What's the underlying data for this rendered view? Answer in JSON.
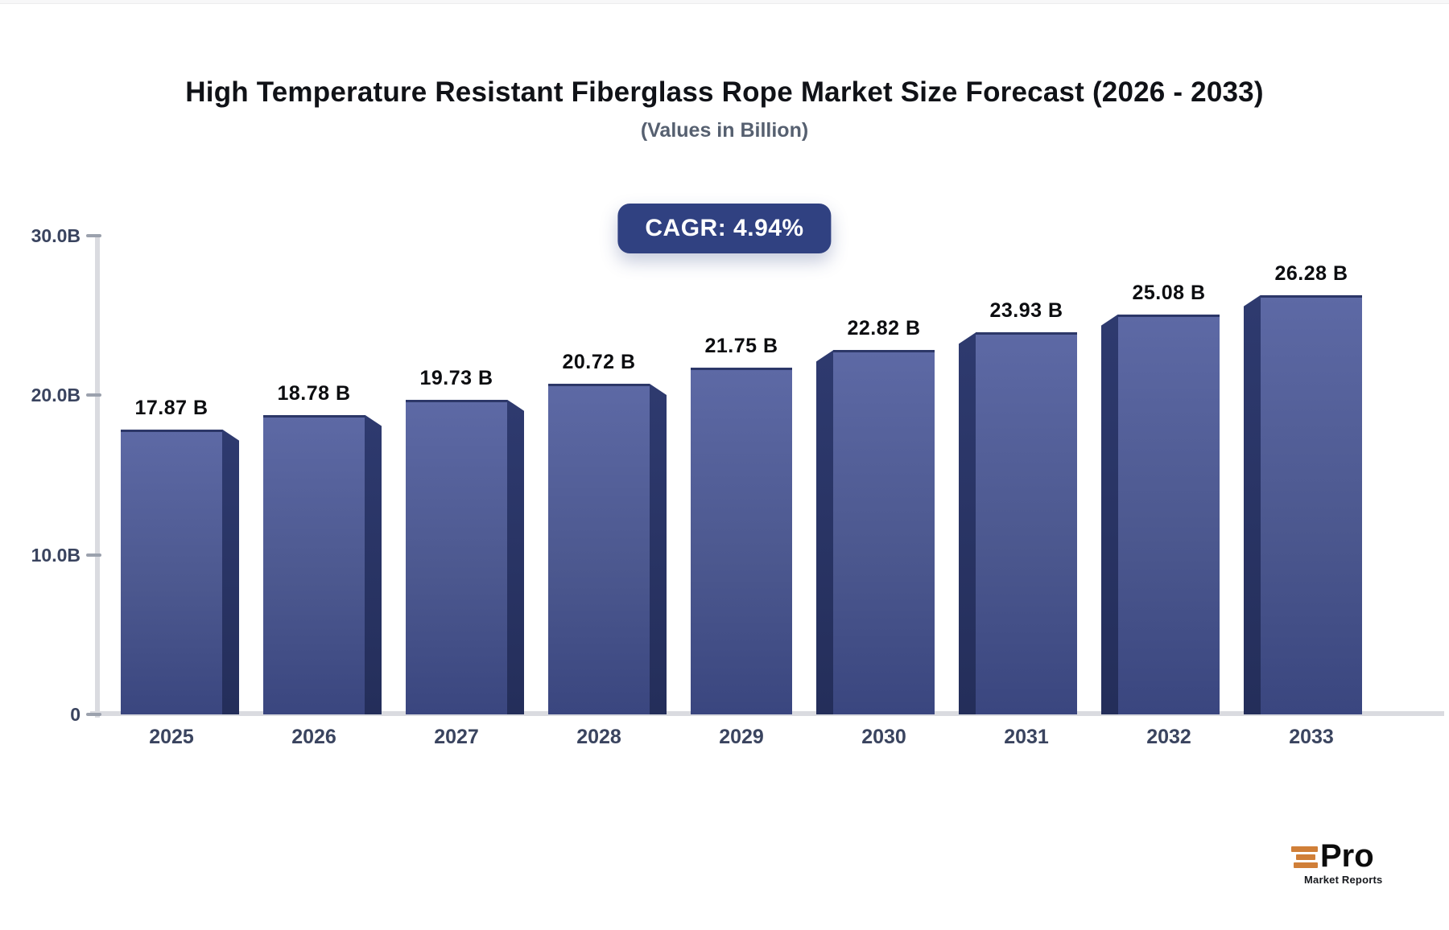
{
  "title": "High Temperature Resistant Fiberglass Rope Market Size Forecast (2026 - 2033)",
  "subtitle": "(Values in Billion)",
  "cagr_badge_label": "CAGR: 4.94%",
  "logo": {
    "name": "Pro",
    "tagline": "Market Reports"
  },
  "colors": {
    "bar_face_top": "#5d69a5",
    "bar_face_bottom": "#3a467f",
    "bar_side": "#273363",
    "badge_bg": "#304181",
    "axis_line": "#dadbe0",
    "tick_text": "#3a445f",
    "logo_accent": "#d07f38"
  },
  "chart_data": {
    "type": "bar",
    "title": "High Temperature Resistant Fiberglass Rope Market Size Forecast (2026 - 2033)",
    "subtitle": "(Values in Billion)",
    "categories": [
      "2025",
      "2026",
      "2027",
      "2028",
      "2029",
      "2030",
      "2031",
      "2032",
      "2033"
    ],
    "values": [
      17.87,
      18.78,
      19.73,
      20.72,
      21.75,
      22.82,
      23.93,
      25.08,
      26.28
    ],
    "bar_labels": [
      "17.87 B",
      "18.78 B",
      "19.73 B",
      "20.72 B",
      "21.75 B",
      "22.82 B",
      "23.93 B",
      "25.08 B",
      "26.28 B"
    ],
    "unit": "Billion",
    "xlabel": "",
    "ylabel": "",
    "ylim": [
      0,
      30
    ],
    "yticks": [
      {
        "label": "30.0B",
        "value": 30
      },
      {
        "label": "20.0B",
        "value": 20
      },
      {
        "label": "10.0B",
        "value": 10
      },
      {
        "label": "0",
        "value": 0
      }
    ],
    "grid": false,
    "legend": false,
    "style": "3d-perspective-bars, vanishing point at center bar"
  }
}
